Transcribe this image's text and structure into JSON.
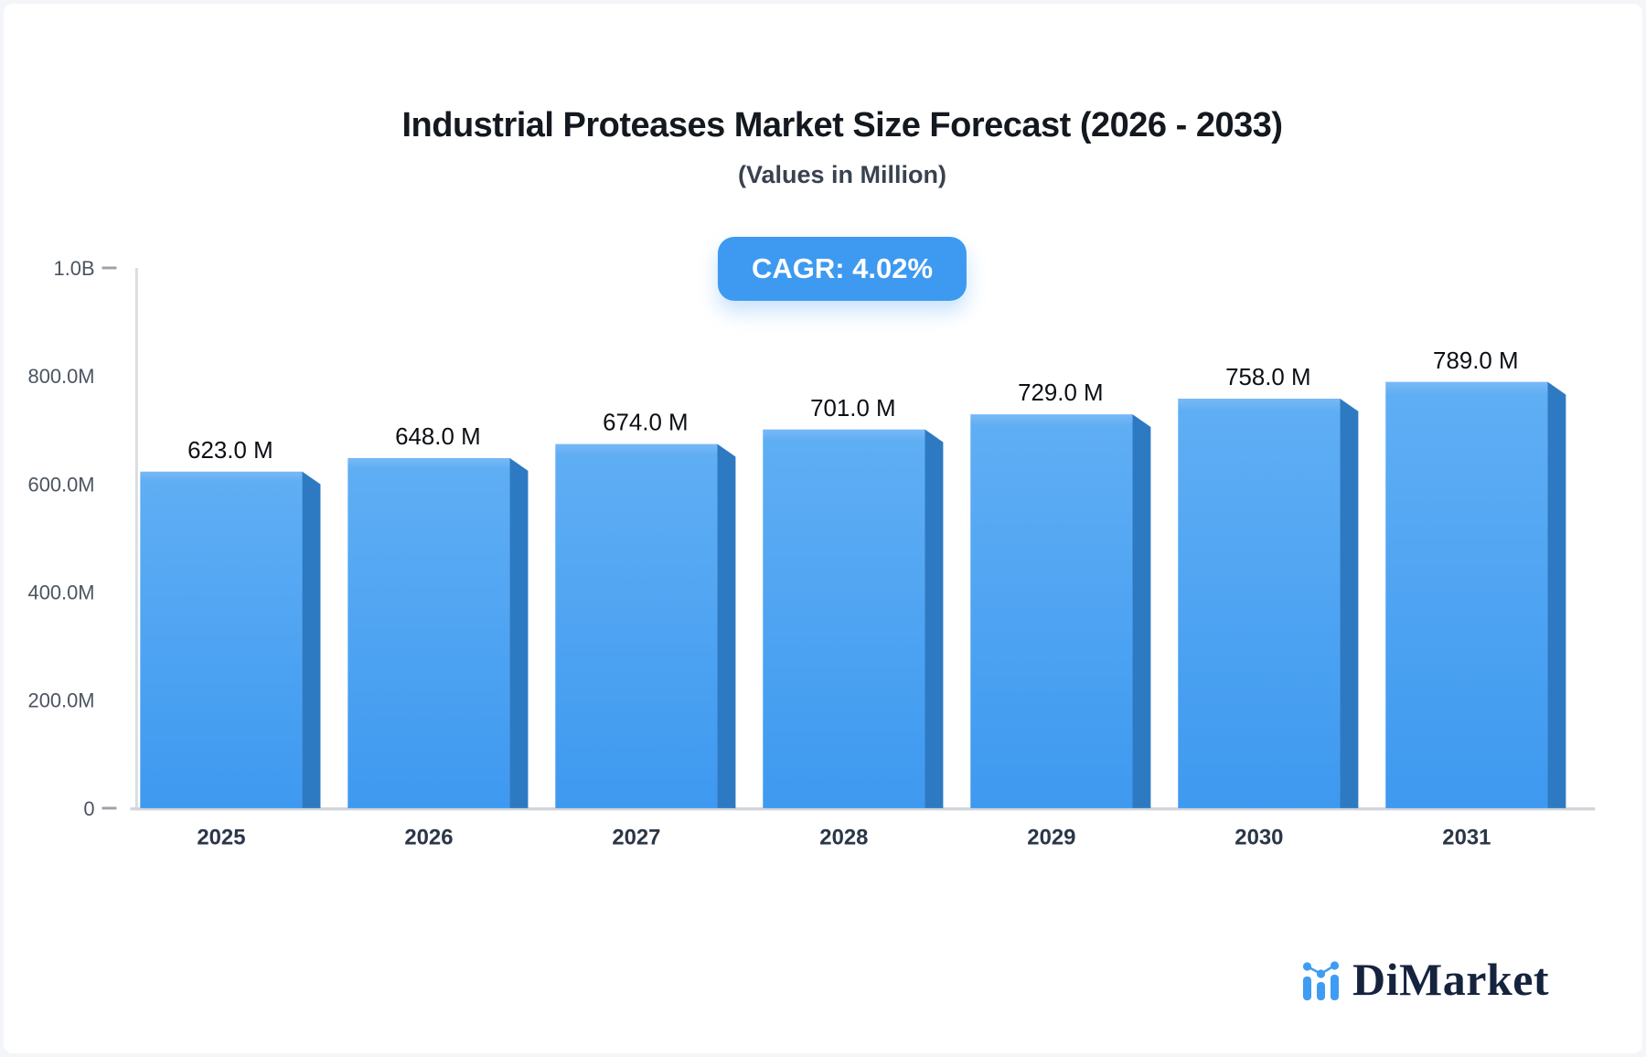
{
  "header": {
    "title": "Industrial Proteases Market Size Forecast (2026 - 2033)",
    "subtitle": "(Values in Million)"
  },
  "badge": {
    "label": "CAGR: 4.02%",
    "bg_color": "#3E9AF0",
    "text_color": "#FFFFFF"
  },
  "chart_data": {
    "type": "bar",
    "title": "Industrial Proteases Market Size Forecast (2026 - 2033)",
    "subtitle": "(Values in Million)",
    "unit": "Million USD",
    "categories": [
      "2025",
      "2026",
      "2027",
      "2028",
      "2029",
      "2030",
      "2031"
    ],
    "values": [
      623,
      648,
      674,
      701,
      729,
      758,
      789
    ],
    "bar_labels": [
      "623.0 M",
      "648.0 M",
      "674.0 M",
      "701.0 M",
      "729.0 M",
      "758.0 M",
      "789.0 M"
    ],
    "y_ticks": [
      {
        "label": "1.0B",
        "value": 1000
      },
      {
        "label": "800.0M",
        "value": 800
      },
      {
        "label": "600.0M",
        "value": 600
      },
      {
        "label": "400.0M",
        "value": 400
      },
      {
        "label": "200.0M",
        "value": 200
      },
      {
        "label": "0",
        "value": 0
      }
    ],
    "ylim": [
      0,
      1000
    ],
    "grid": false,
    "legend": false,
    "colors": {
      "bar_top": "#5FAEF4",
      "bar_highlight": "#79B9F6",
      "bar_bottom": "#3E99F0",
      "bar_side": "#2E7AC2",
      "axis_line": "#DADDE1",
      "baseline": "#D2D6DA",
      "tick_dash": "#9CA3AB",
      "y_label": "#4C5561",
      "x_label": "#2B3648",
      "value_label": "#0C0F14"
    }
  },
  "logo": {
    "brand": "DiMarket",
    "icon": "bar-line-chart-icon",
    "accent_color": "#3F9CF3",
    "text_color": "#16233E"
  }
}
